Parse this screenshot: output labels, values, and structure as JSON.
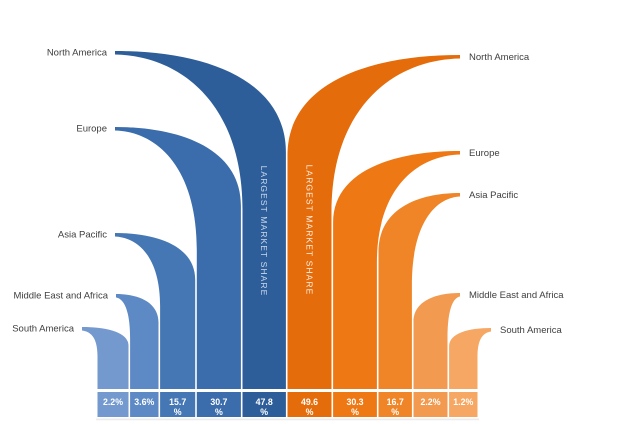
{
  "chart_data": {
    "type": "bar",
    "variant": "mirrored-swoosh-funnel",
    "title": "",
    "legend": "none",
    "grid": false,
    "axes": "none",
    "center_labels": [
      "LARGEST MARKET SHARE",
      "LARGEST MARKET SHARE"
    ],
    "categories": [
      "North America",
      "Europe",
      "Asia Pacific",
      "Middle East and Africa",
      "South America"
    ],
    "series": [
      {
        "name": "left",
        "theme": "blue",
        "values": [
          47.8,
          30.7,
          15.7,
          3.6,
          2.2
        ],
        "value_labels": [
          [
            "47.8",
            "%"
          ],
          [
            "30.7",
            "%"
          ],
          [
            "15.7",
            "%"
          ],
          [
            "3.6%"
          ],
          [
            "2.2%"
          ]
        ],
        "colors": [
          "#2e5e9a",
          "#3b6cab",
          "#4577b4",
          "#5d89c4",
          "#7399ce"
        ]
      },
      {
        "name": "right",
        "theme": "orange",
        "values": [
          49.6,
          30.3,
          16.7,
          2.2,
          1.2
        ],
        "value_labels": [
          [
            "49.6",
            "%"
          ],
          [
            "30.3",
            "%"
          ],
          [
            "16.7",
            "%"
          ],
          [
            "2.2%"
          ],
          [
            "1.2%"
          ]
        ],
        "colors": [
          "#e56c0a",
          "#ee7814",
          "#ef8527",
          "#f29a50",
          "#f5a763"
        ]
      }
    ]
  }
}
